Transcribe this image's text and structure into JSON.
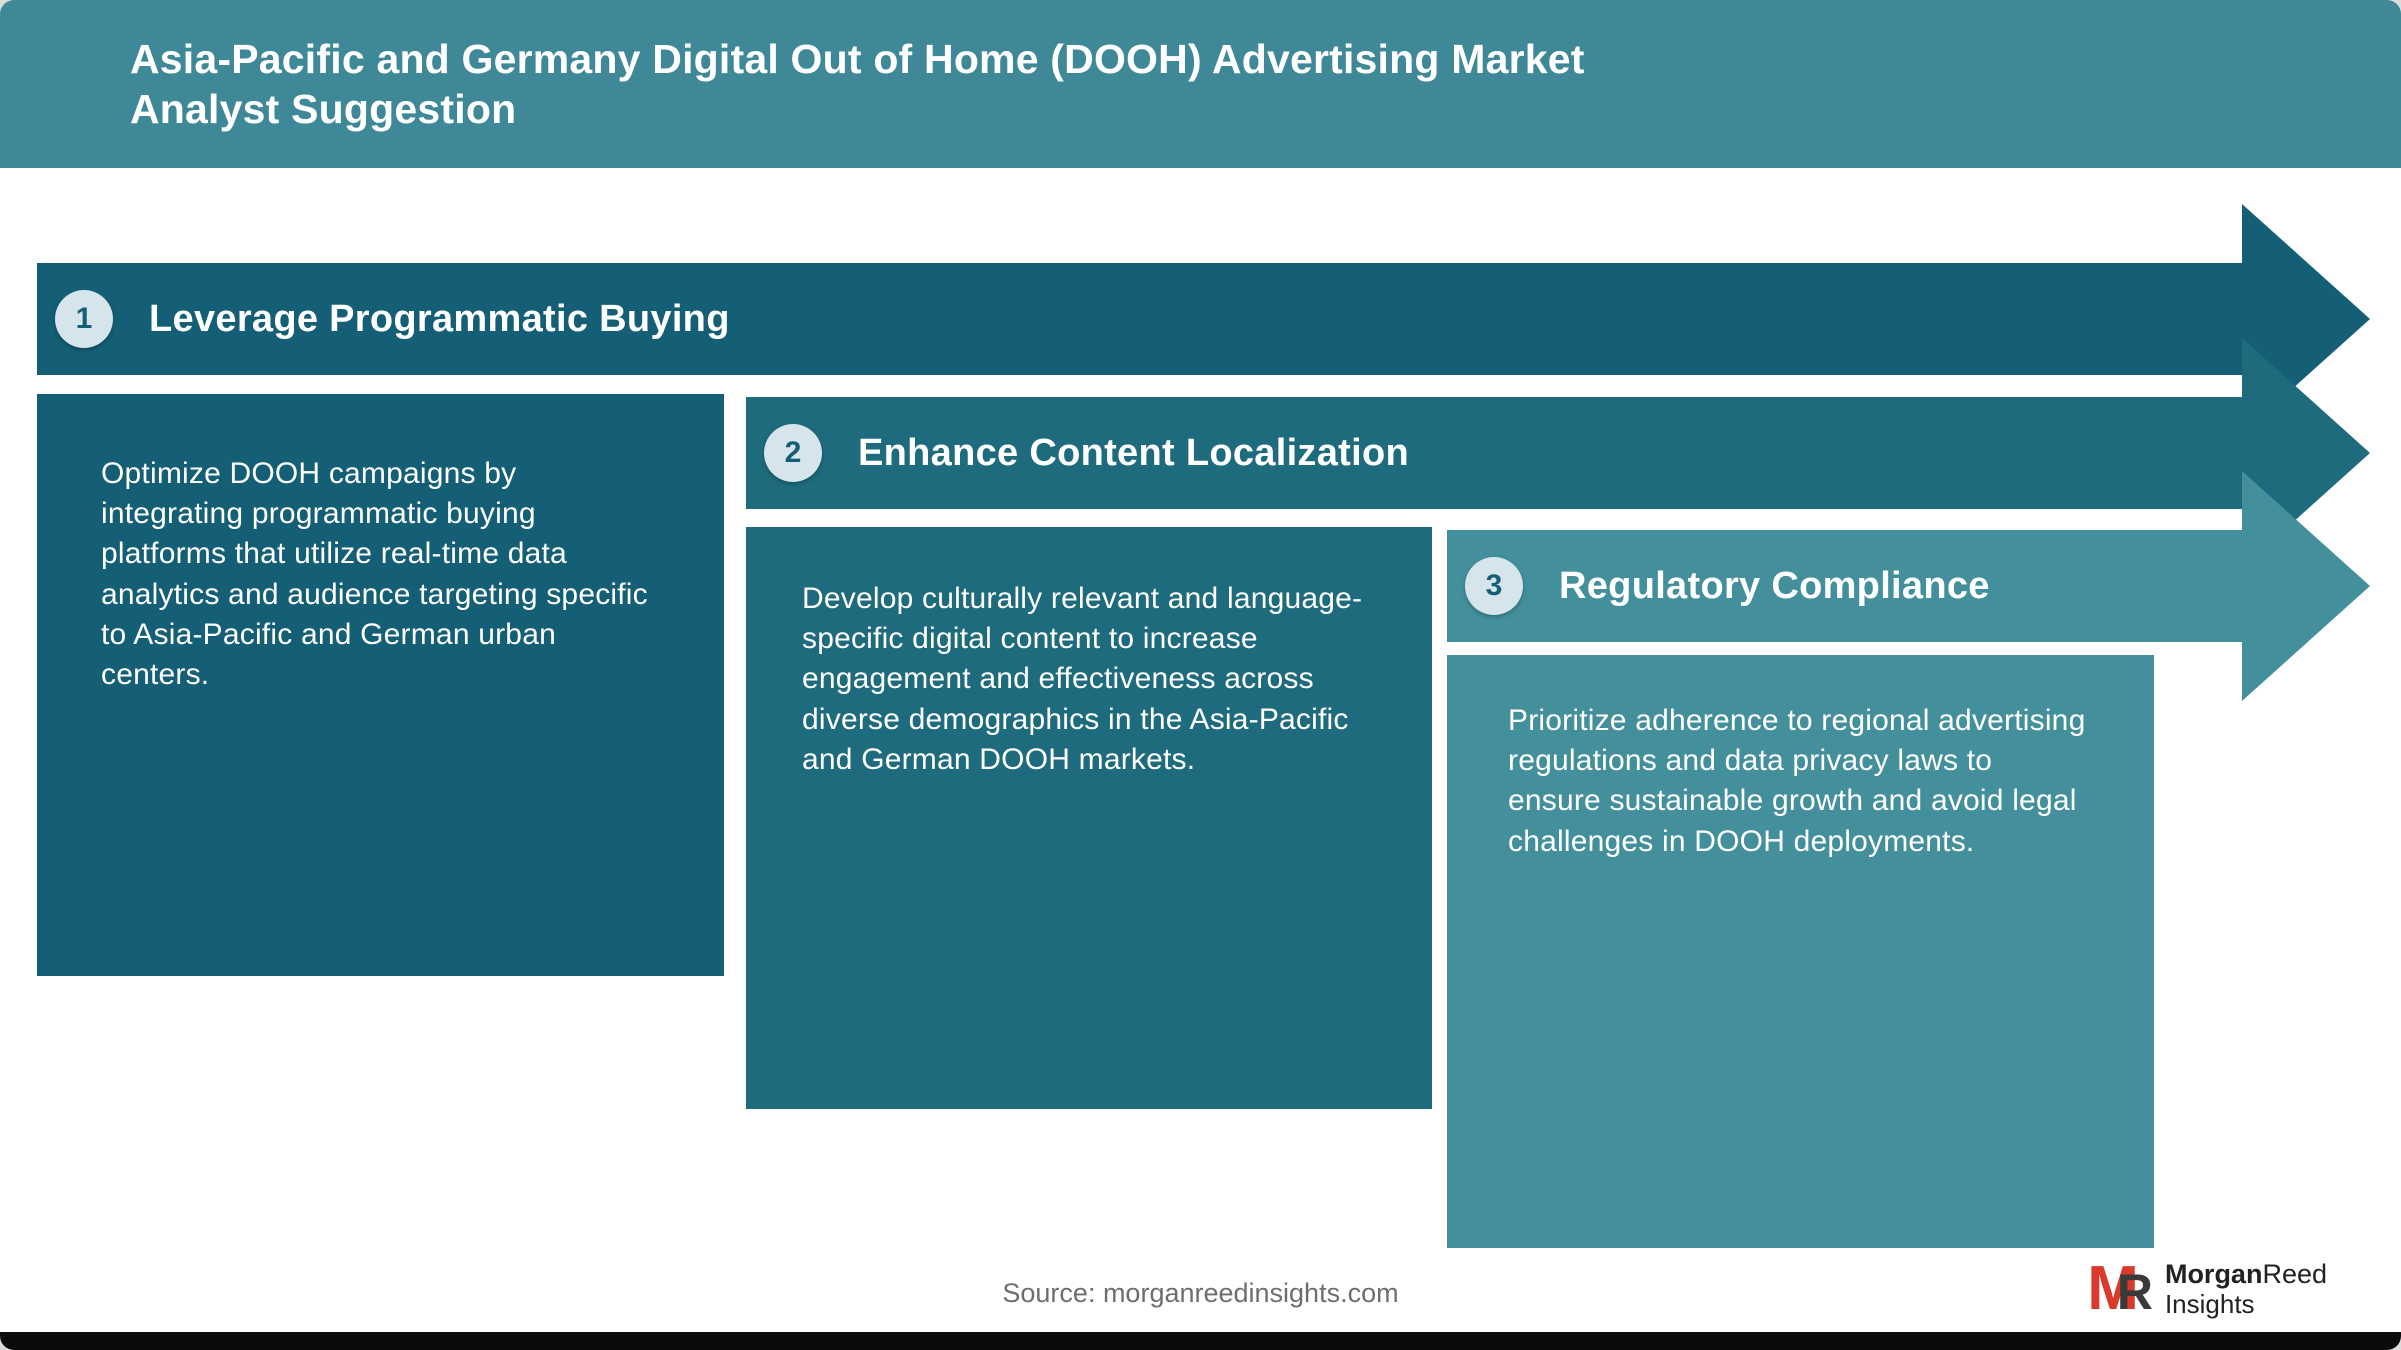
{
  "header": {
    "title_line1": "Asia-Pacific and Germany Digital Out of Home (DOOH) Advertising Market",
    "title_line2": "Analyst Suggestion"
  },
  "steps": [
    {
      "number": "1",
      "heading": "Leverage Programmatic Buying",
      "body": "Optimize DOOH campaigns by integrating programmatic buying platforms that utilize real-time data analytics and audience targeting specific to Asia-Pacific and German urban centers."
    },
    {
      "number": "2",
      "heading": "Enhance Content Localization",
      "body": "Develop culturally relevant and language-specific digital content to increase engagement and effectiveness across diverse demographics in the Asia-Pacific and German DOOH markets."
    },
    {
      "number": "3",
      "heading": "Regulatory Compliance",
      "body": "Prioritize adherence to regional advertising regulations and data privacy laws to ensure sustainable growth and avoid legal challenges in DOOH deployments."
    }
  ],
  "footer": {
    "source": "Source: morganreedinsights.com",
    "logo": {
      "monogram_m": "M",
      "monogram_r": "R",
      "name_bold": "Morgan",
      "name_light": "Reed",
      "tagline": "Insights"
    }
  },
  "colors": {
    "header_bg": "#3E8897",
    "step1_bg": "#145F75",
    "step2_bg": "#1E6B7E",
    "step3_bg": "#43909C",
    "circle_bg": "#D6E4EC",
    "circle_text": "#145F75",
    "source_text": "#6E6E6E",
    "logo_red": "#D93A2B",
    "logo_dark": "#3A3A3A",
    "bottom_bar": "#0B0B0B"
  }
}
